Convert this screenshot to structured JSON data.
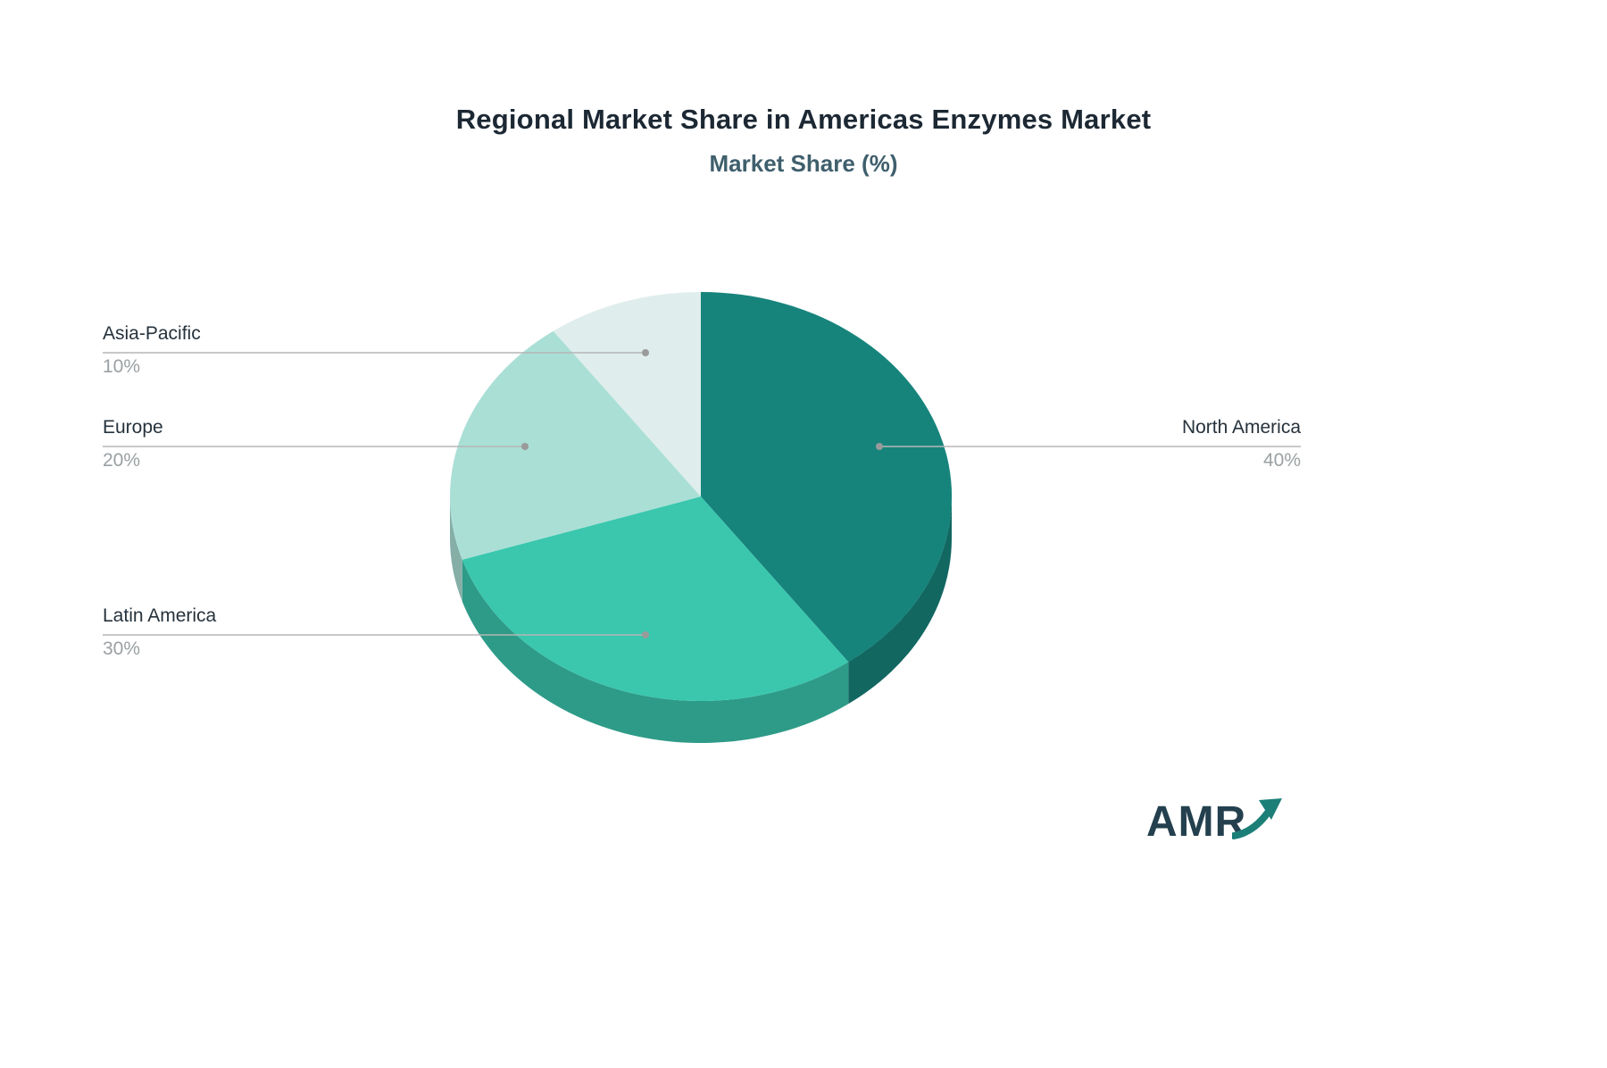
{
  "chart_data": {
    "type": "pie",
    "title": "Regional Market Share in Americas Enzymes Market",
    "subtitle": "Market Share (%)",
    "unit": "%",
    "effect": "3d",
    "direction": "clockwise",
    "start_angle_deg": 0,
    "legend_position": "none",
    "slices": [
      {
        "label": "North America",
        "value": 40,
        "display": "40%",
        "color": "#17847c"
      },
      {
        "label": "Latin America",
        "value": 30,
        "display": "30%",
        "color": "#3ac7ae"
      },
      {
        "label": "Europe",
        "value": 20,
        "display": "20%",
        "color": "#aadfd6"
      },
      {
        "label": "Asia-Pacific",
        "value": 10,
        "display": "10%",
        "color": "#dfeeec"
      }
    ],
    "leader_line_color": "#b6b6b6",
    "label_color": "#26323c",
    "value_color": "#9aa0a3"
  },
  "logo": {
    "text": "AMR",
    "color": "#24404e",
    "arrow_color": "#1b7f78"
  }
}
